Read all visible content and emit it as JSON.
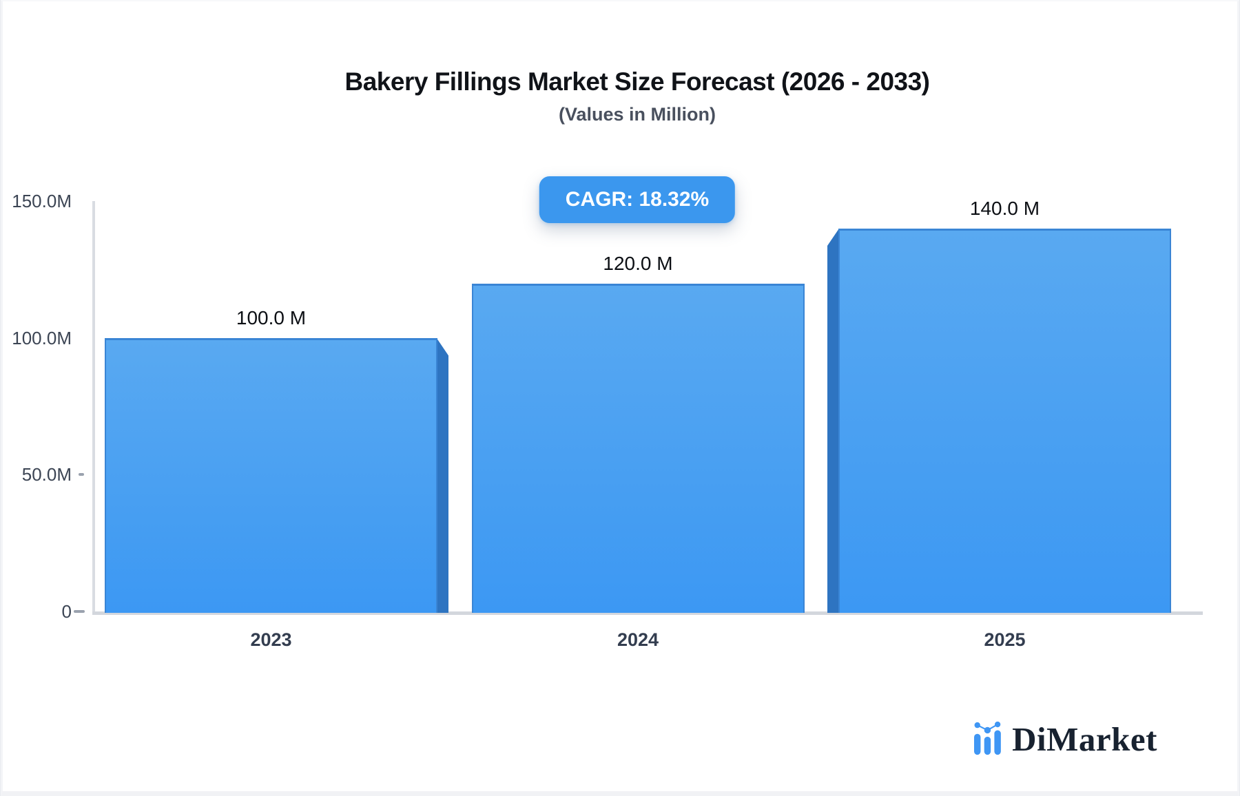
{
  "header": {
    "title": "Bakery Fillings Market Size Forecast (2026 - 2033)",
    "subtitle": "(Values in Million)"
  },
  "badge": {
    "label": "CAGR: 18.32%",
    "bg_color": "#3b97ee",
    "text_color": "#ffffff"
  },
  "chart_data": {
    "type": "bar",
    "title": "Bakery Fillings Market Size Forecast (2026 - 2033)",
    "subtitle": "(Values in Million)",
    "unit": "Million",
    "categories": [
      "2023",
      "2024",
      "2025"
    ],
    "values": [
      100,
      120,
      140
    ],
    "value_labels": [
      "100.0 M",
      "120.0 M",
      "140.0 M"
    ],
    "cagr_percent": 18.32,
    "ylim": [
      0,
      150
    ],
    "y_ticks": [
      {
        "label": "150.0M",
        "value": 150,
        "dash": "none"
      },
      {
        "label": "100.0M",
        "value": 100,
        "dash": "none"
      },
      {
        "label": "50.0M",
        "value": 50,
        "dash": "short"
      },
      {
        "label": "0",
        "value": 0,
        "dash": "long"
      }
    ],
    "grid": false,
    "legend": false,
    "bar_color_top": "#59a9f1",
    "bar_color_bottom": "#3c98f3",
    "bar_border_color": "#3a85d5",
    "bar_side_color": "#2e74c1",
    "axis_color": "#d6dade"
  },
  "logo": {
    "text": "DiMarket",
    "icon": "bar-chart-logo-icon",
    "icon_color": "#3f96f4",
    "text_color": "#182230"
  }
}
